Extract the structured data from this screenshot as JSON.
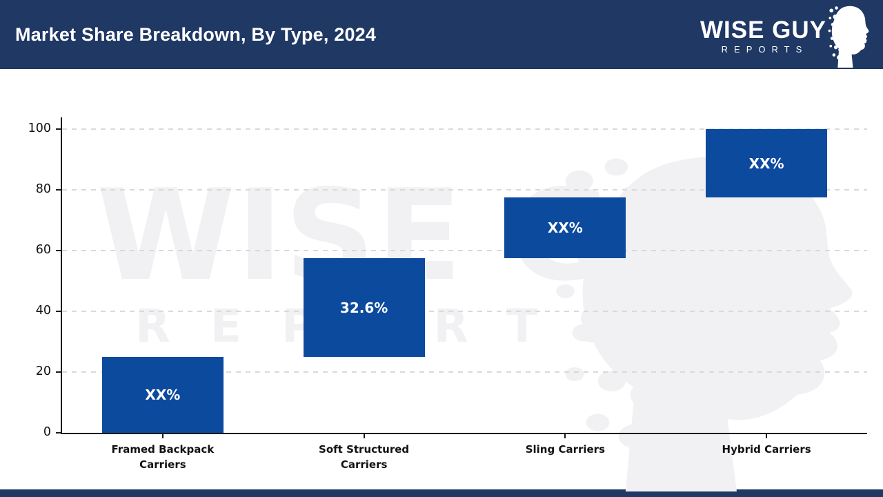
{
  "header": {
    "title": "Market Share Breakdown, By Type, 2024",
    "logo": {
      "line1": "WISE GUY",
      "line2": "REPORTS"
    }
  },
  "watermark": {
    "line1": "WISE GUY",
    "line2": "REPORTS"
  },
  "chart_data": {
    "type": "bar",
    "subtype": "waterfall",
    "title": "Market Share Breakdown, By Type, 2024",
    "categories": [
      "Framed Backpack\nCarriers",
      "Soft Structured\nCarriers",
      "Sling Carriers",
      "Hybrid Carriers"
    ],
    "segments": [
      {
        "category": "Framed Backpack Carriers",
        "start": 0,
        "end": 24.9,
        "label": "XX%"
      },
      {
        "category": "Soft Structured Carriers",
        "start": 24.9,
        "end": 57.5,
        "label": "32.6%",
        "value": 32.6
      },
      {
        "category": "Sling Carriers",
        "start": 57.5,
        "end": 77.5,
        "label": "XX%"
      },
      {
        "category": "Hybrid Carriers",
        "start": 77.5,
        "end": 100,
        "label": "XX%"
      }
    ],
    "xlabel": "",
    "ylabel": "",
    "ylim": [
      0,
      100
    ],
    "yticks": [
      0,
      20,
      40,
      60,
      80,
      100
    ],
    "grid": "horizontal-dashed",
    "legend": "none",
    "bar_color": "#0c4a9e",
    "bar_label_color": "#ffffff"
  },
  "colors": {
    "header_bg": "#1f3864",
    "footer_bg": "#1f3864",
    "bar": "#0c4a9e",
    "bar_label": "#ffffff",
    "axis": "#1a1a1a",
    "grid": "#d9d9d9",
    "tick_label": "#111111",
    "watermark": "#f1f1f3"
  }
}
